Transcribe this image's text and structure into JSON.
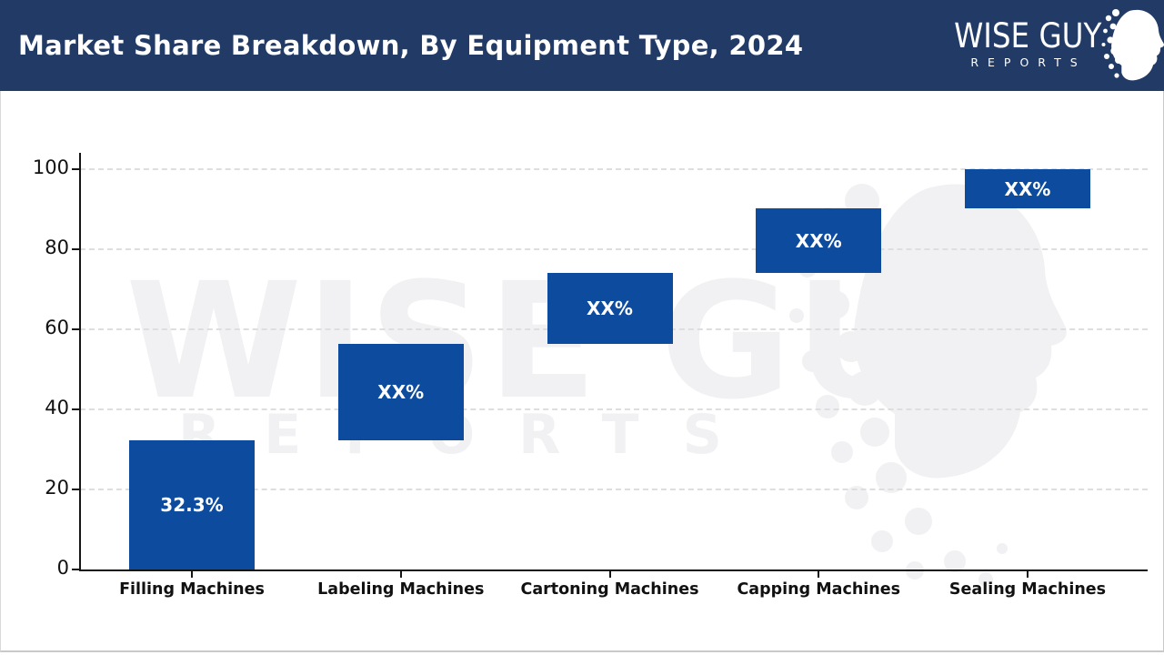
{
  "header": {
    "title": "Market Share Breakdown, By Equipment Type, 2024",
    "logo": {
      "line1": "WISE GUY",
      "line2": "REPORTS"
    }
  },
  "watermark": {
    "line1": "WISE GUY",
    "line2": "REPORTS"
  },
  "colors": {
    "header_bg": "#213a66",
    "bar": "#0c4b9e",
    "bar_label": "#ffffff",
    "axis": "#151515",
    "gridline": "#dedede",
    "watermark": "#f1f1f3"
  },
  "chart_data": {
    "type": "bar",
    "subtype": "waterfall",
    "title": "Market Share Breakdown, By Equipment Type, 2024",
    "xlabel": "",
    "ylabel": "",
    "ylim": [
      0,
      104
    ],
    "yticks": [
      0,
      20,
      40,
      60,
      80,
      100
    ],
    "grid": "horizontal-dashed",
    "legend": "none",
    "categories": [
      "Filling Machines",
      "Labeling Machines",
      "Cartoning Machines",
      "Capping Machines",
      "Sealing Machines"
    ],
    "bars": [
      {
        "category": "Filling Machines",
        "start": 0,
        "end": 32.3,
        "label": "32.3%"
      },
      {
        "category": "Labeling Machines",
        "start": 32.3,
        "end": 56.4,
        "label": "XX%"
      },
      {
        "category": "Cartoning Machines",
        "start": 56.4,
        "end": 74.1,
        "label": "XX%"
      },
      {
        "category": "Capping Machines",
        "start": 74.1,
        "end": 90.2,
        "label": "XX%"
      },
      {
        "category": "Sealing Machines",
        "start": 90.2,
        "end": 100,
        "label": "XX%"
      }
    ]
  }
}
